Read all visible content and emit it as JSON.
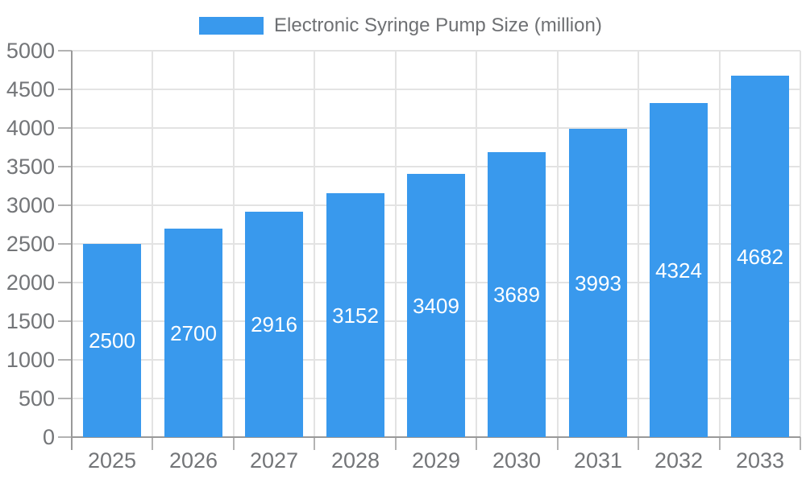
{
  "chart_data": {
    "type": "bar",
    "title": "Electronic Syringe Pump Size (million)",
    "series_name": "Electronic Syringe Pump Size (million)",
    "categories": [
      "2025",
      "2026",
      "2027",
      "2028",
      "2029",
      "2030",
      "2031",
      "2032",
      "2033"
    ],
    "values": [
      2500,
      2700,
      2916,
      3152,
      3409,
      3689,
      3993,
      4324,
      4682
    ],
    "xlabel": "",
    "ylabel": "",
    "ylim": [
      0,
      5000
    ],
    "y_tick_step": 500,
    "y_tick_labels": [
      "0",
      "500",
      "1000",
      "1500",
      "2000",
      "2500",
      "3000",
      "3500",
      "4000",
      "4500",
      "5000"
    ],
    "grid": true,
    "legend_position": "top",
    "value_labels_inside_bars": true,
    "colors": {
      "bar": "#3999ed",
      "value_label": "#ffffff",
      "axis_text": "#737578",
      "legend_text": "#6e7073",
      "gridline": "#e3e3e3",
      "tick": "#b3b3b3",
      "axis_line": "#999999",
      "background": "#ffffff"
    }
  }
}
